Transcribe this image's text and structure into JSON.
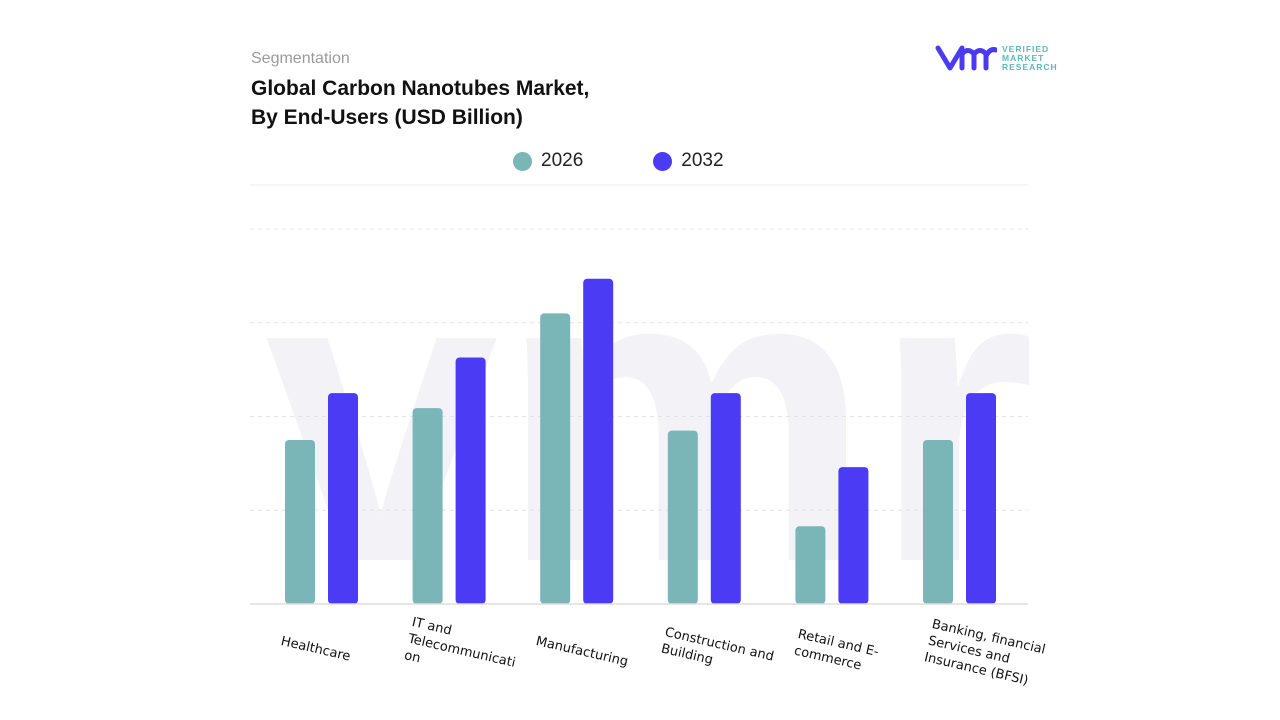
{
  "header": {
    "segment_label": "Segmentation",
    "title_line1": "Global Carbon Nanotubes Market,",
    "title_line2": "By End-Users (USD Billion)"
  },
  "logo": {
    "mark": "vmr",
    "line1": "VERIFIED",
    "line2": "MARKET",
    "line3": "RESEARCH",
    "color": "#4b3bf0"
  },
  "chart_data": {
    "type": "bar",
    "title": "Global Carbon Nanotubes Market, By End-Users (USD Billion)",
    "categories": [
      "Healthcare",
      "IT and Telecommunicati on",
      "Manufacturing",
      "Construction and Building",
      "Retail and E-commerce",
      "Banking, financial Services and Insurance (BFSI)"
    ],
    "series": [
      {
        "name": "2026",
        "color": "#7ab5b8",
        "values": [
          1.75,
          2.09,
          3.1,
          1.85,
          0.83,
          1.75
        ]
      },
      {
        "name": "2032",
        "color": "#4b3bf5",
        "values": [
          2.25,
          2.63,
          3.47,
          2.25,
          1.46,
          2.25
        ]
      }
    ],
    "ylim": [
      0,
      4
    ],
    "y_tick_labels_shown": false,
    "grid": true,
    "legend_position": "top-center"
  }
}
